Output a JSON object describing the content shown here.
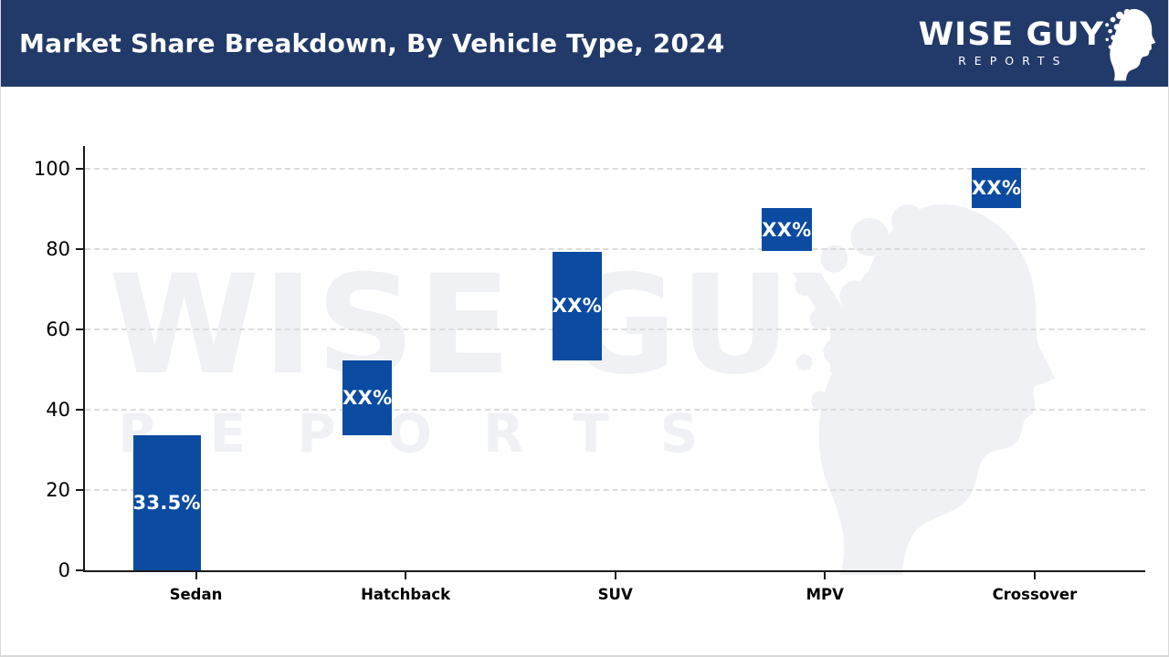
{
  "header": {
    "title": "Market Share Breakdown, By Vehicle Type, 2024",
    "logo": {
      "wordmark": "WISE GUY",
      "subtext": "REPORTS"
    }
  },
  "watermark": {
    "line1": "WISE GUY",
    "line2": "REPORTS"
  },
  "chart_data": {
    "type": "bar",
    "subtype": "waterfall",
    "title": "Market Share Breakdown, By Vehicle Type, 2024",
    "categories": [
      "Sedan",
      "Hatchback",
      "SUV",
      "MPV",
      "Crossover"
    ],
    "segments": [
      {
        "category": "Sedan",
        "start": 0,
        "end": 33.5,
        "label": "33.5%"
      },
      {
        "category": "Hatchback",
        "start": 33.5,
        "end": 52.3,
        "label": "XX%"
      },
      {
        "category": "SUV",
        "start": 52.3,
        "end": 79.2,
        "label": "XX%"
      },
      {
        "category": "MPV",
        "start": 79.4,
        "end": 90.1,
        "label": "XX%"
      },
      {
        "category": "Crossover",
        "start": 90.1,
        "end": 100.2,
        "label": "XX%"
      }
    ],
    "xlabel": "",
    "ylabel": "",
    "ylim": [
      0,
      100
    ],
    "yticks": [
      0,
      20,
      40,
      60,
      80,
      100
    ],
    "grid": "horizontal-dashed",
    "legend": "none"
  },
  "colors": {
    "header_bg": "#223a69",
    "bar": "#0b4ba1",
    "bar_label": "#ffffff",
    "axis": "#1a1a1a",
    "grid": "#dcdcdc",
    "watermark": "#f0f1f4",
    "page_border": "#d9d9d9"
  }
}
